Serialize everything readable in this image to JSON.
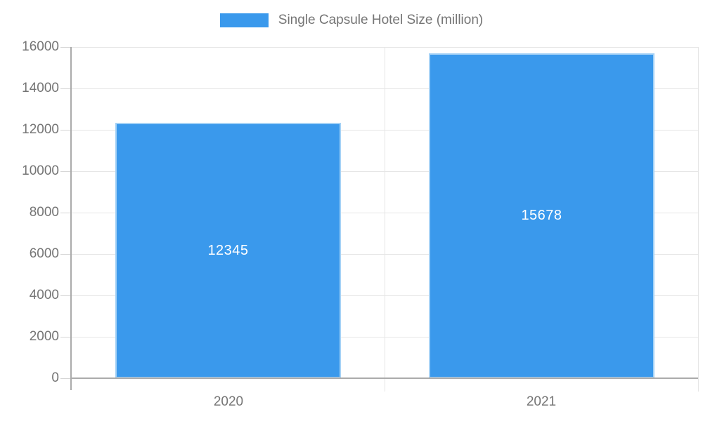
{
  "legend": {
    "label": "Single Capsule Hotel Size (million)"
  },
  "chart_data": {
    "type": "bar",
    "title": "Single Capsule Hotel Size (million)",
    "categories": [
      "2020",
      "2021"
    ],
    "series": [
      {
        "name": "Single Capsule Hotel Size (million)",
        "values": [
          12345,
          15678
        ]
      }
    ],
    "ylim": [
      0,
      16000
    ],
    "yticks": [
      0,
      2000,
      4000,
      6000,
      8000,
      10000,
      12000,
      14000,
      16000
    ],
    "grid": true,
    "legend_position": "top-center",
    "bar_width_fraction": 0.72,
    "colors": {
      "bar_fill": "#3A99EC",
      "bar_stroke": "#A5D2F6",
      "axis_line": "#ABABAB",
      "gridline": "#E6E6E6",
      "tick": "#D6D6D6",
      "axis_text": "#757575",
      "value_text": "#FFFFFF",
      "background": "#FFFFFF"
    }
  }
}
